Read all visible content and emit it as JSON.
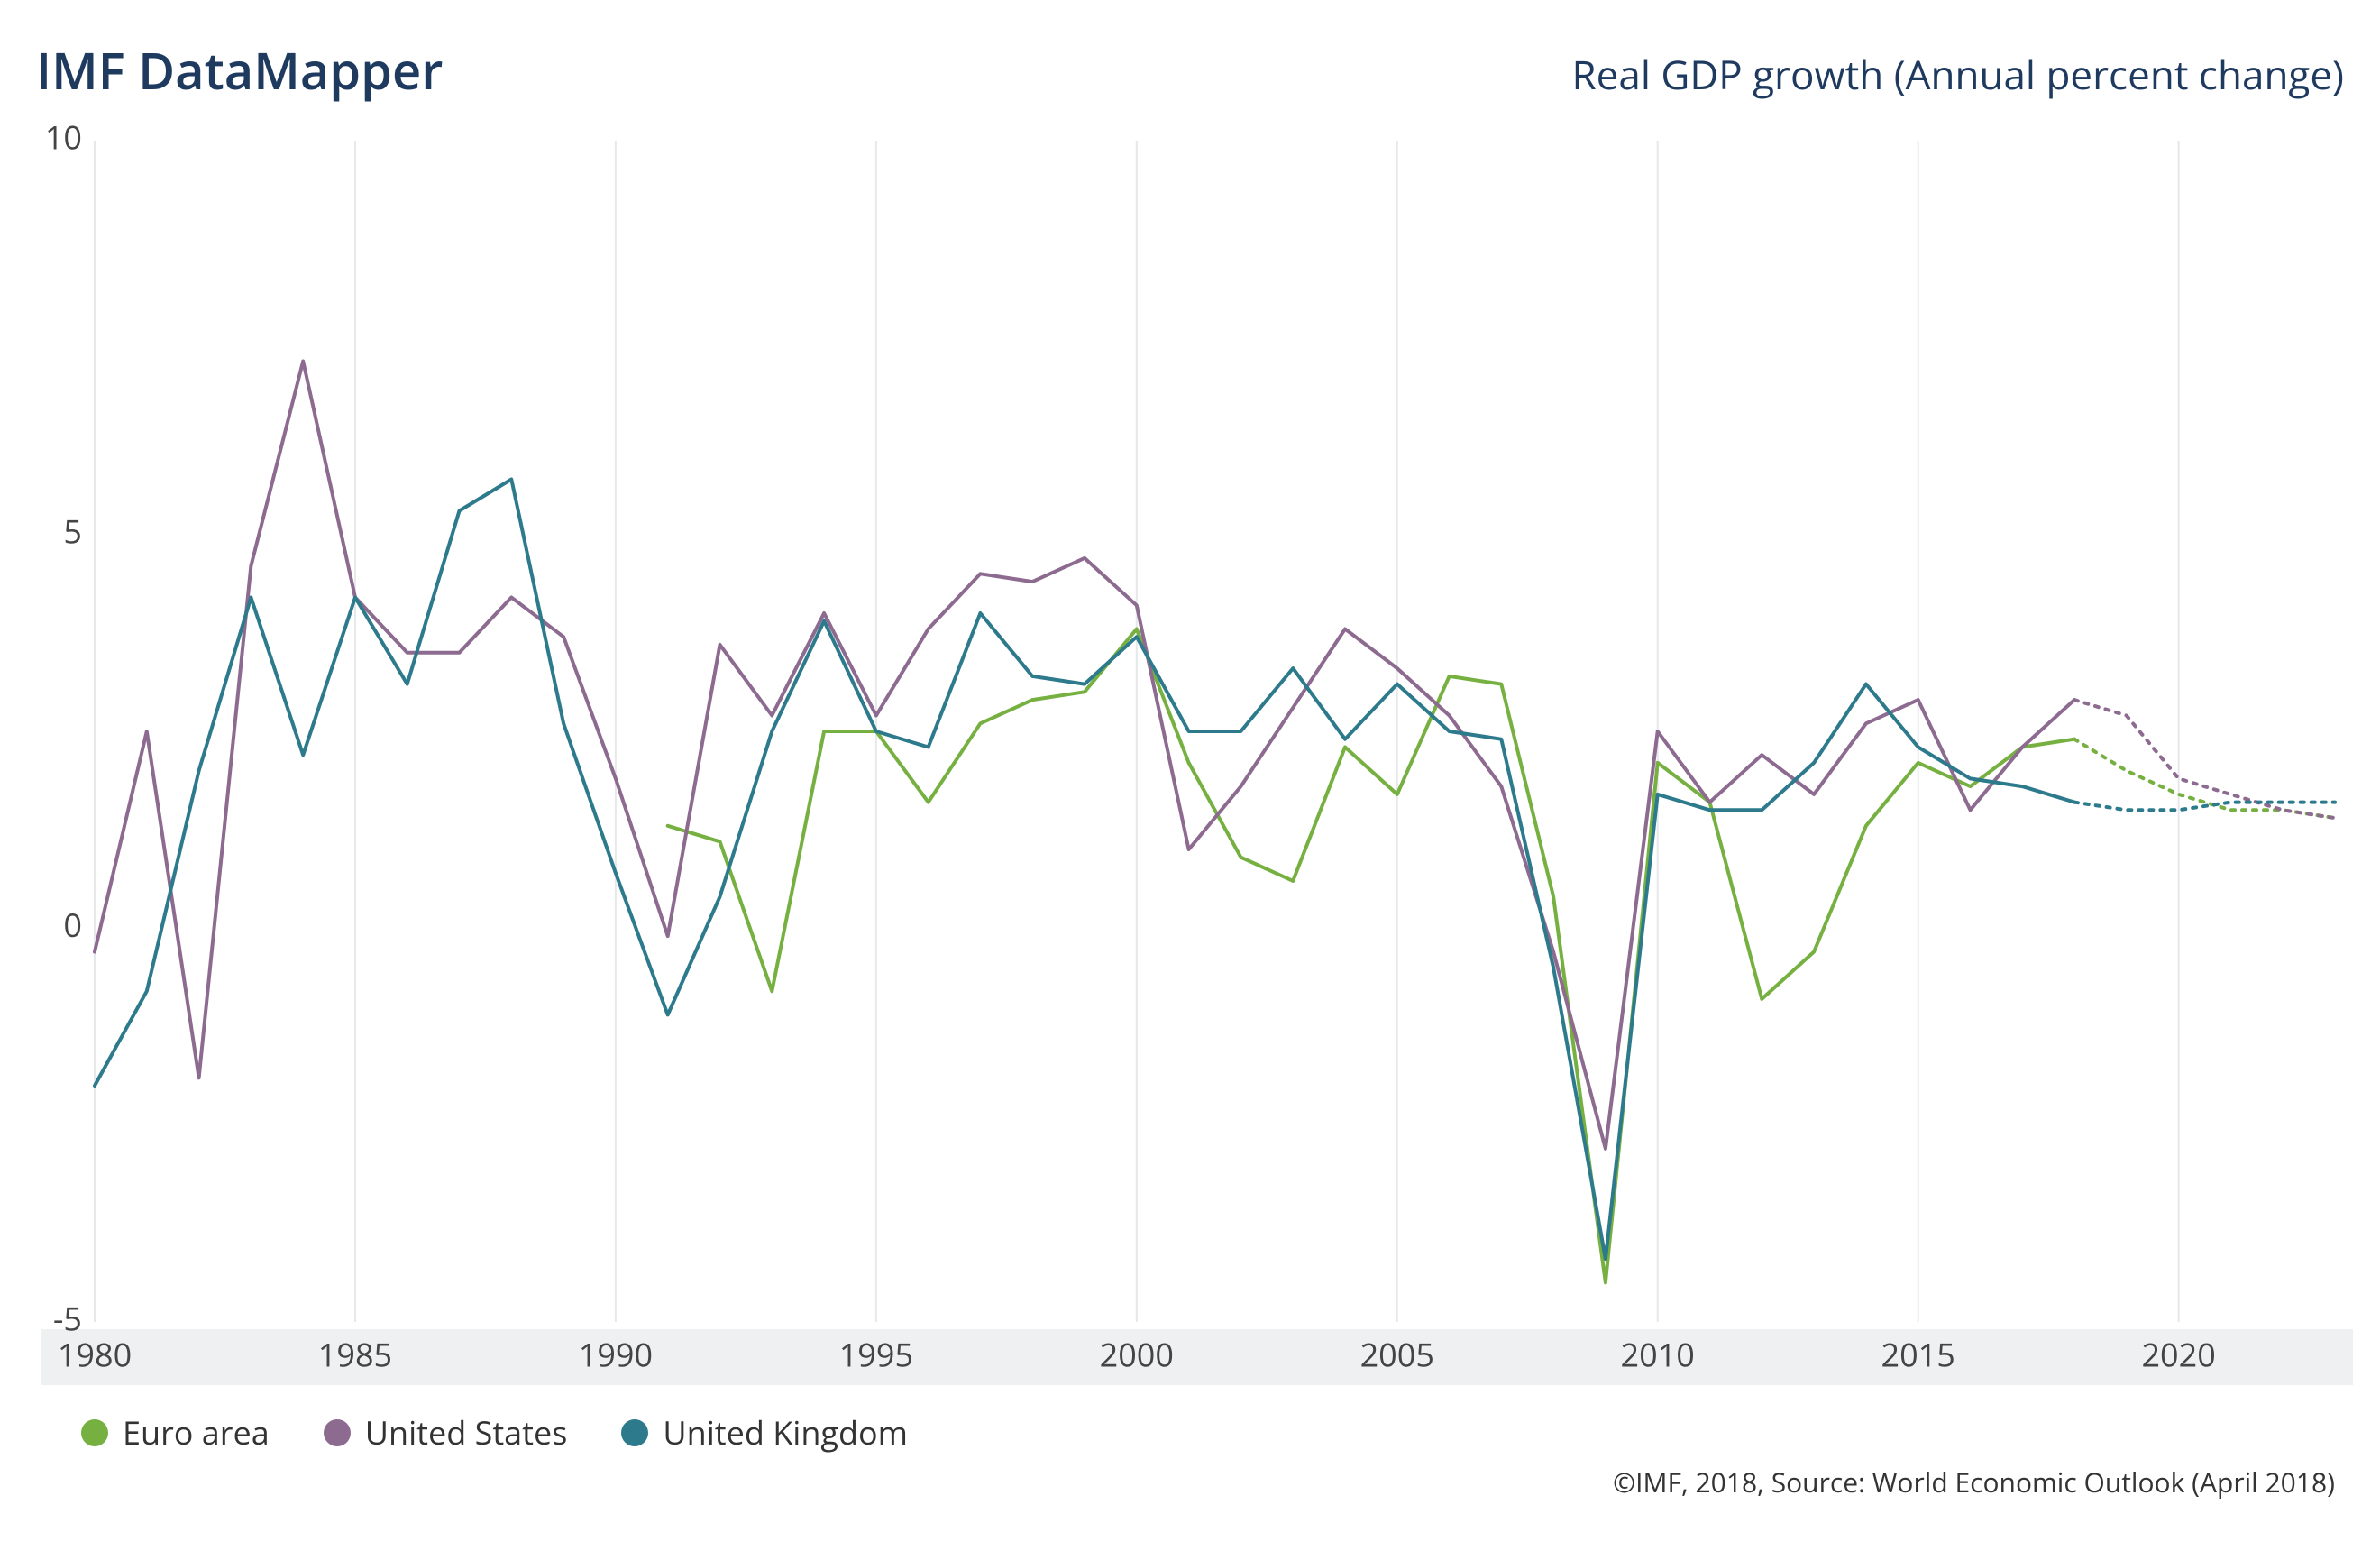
{
  "header": {
    "left_title": "IMF DataMapper",
    "right_title": "Real GDP growth (Annual percent change)"
  },
  "footer": {
    "text": "©IMF, 2018, Source: World Economic Outlook (April 2018)"
  },
  "chart": {
    "type": "line",
    "background_color": "#ffffff",
    "grid_color": "#e6e8eb",
    "x_axis_band_color": "#eef0f2",
    "line_width": 4,
    "forecast_dash": "4 8",
    "x": {
      "min": 1980,
      "max": 2023,
      "ticks": [
        1980,
        1985,
        1990,
        1995,
        2000,
        2005,
        2010,
        2015,
        2020
      ],
      "tick_fontsize": 36,
      "tick_color": "#444444"
    },
    "y": {
      "min": -5,
      "max": 10,
      "ticks": [
        -5,
        0,
        5,
        10
      ],
      "tick_fontsize": 36,
      "tick_color": "#444444"
    },
    "forecast_start_year": 2018,
    "series": [
      {
        "name": "Euro area",
        "color": "#76b041",
        "years": [
          1991,
          1992,
          1993,
          1994,
          1995,
          1996,
          1997,
          1998,
          1999,
          2000,
          2001,
          2002,
          2003,
          2004,
          2005,
          2006,
          2007,
          2008,
          2009,
          2010,
          2011,
          2012,
          2013,
          2014,
          2015,
          2016,
          2017,
          2018,
          2019,
          2020,
          2021,
          2022,
          2023
        ],
        "values": [
          1.3,
          1.1,
          -0.8,
          2.5,
          2.5,
          1.6,
          2.6,
          2.9,
          3.0,
          3.8,
          2.1,
          0.9,
          0.6,
          2.3,
          1.7,
          3.2,
          3.1,
          0.4,
          -4.5,
          2.1,
          1.6,
          -0.9,
          -0.3,
          1.3,
          2.1,
          1.8,
          2.3,
          2.4,
          2.0,
          1.7,
          1.5,
          1.5,
          1.4
        ]
      },
      {
        "name": "United States",
        "color": "#8d6a8f",
        "years": [
          1980,
          1981,
          1982,
          1983,
          1984,
          1985,
          1986,
          1987,
          1988,
          1989,
          1990,
          1991,
          1992,
          1993,
          1994,
          1995,
          1996,
          1997,
          1998,
          1999,
          2000,
          2001,
          2002,
          2003,
          2004,
          2005,
          2006,
          2007,
          2008,
          2009,
          2010,
          2011,
          2012,
          2013,
          2014,
          2015,
          2016,
          2017,
          2018,
          2019,
          2020,
          2021,
          2022,
          2023
        ],
        "values": [
          -0.3,
          2.5,
          -1.9,
          4.6,
          7.2,
          4.2,
          3.5,
          3.5,
          4.2,
          3.7,
          1.9,
          -0.1,
          3.6,
          2.7,
          4.0,
          2.7,
          3.8,
          4.5,
          4.4,
          4.7,
          4.1,
          1.0,
          1.8,
          2.8,
          3.8,
          3.3,
          2.7,
          1.8,
          -0.3,
          -2.8,
          2.5,
          1.6,
          2.2,
          1.7,
          2.6,
          2.9,
          1.5,
          2.3,
          2.9,
          2.7,
          1.9,
          1.7,
          1.5,
          1.4
        ]
      },
      {
        "name": "United Kingdom",
        "color": "#2c7a8c",
        "years": [
          1980,
          1981,
          1982,
          1983,
          1984,
          1985,
          1986,
          1987,
          1988,
          1989,
          1990,
          1991,
          1992,
          1993,
          1994,
          1995,
          1996,
          1997,
          1998,
          1999,
          2000,
          2001,
          2002,
          2003,
          2004,
          2005,
          2006,
          2007,
          2008,
          2009,
          2010,
          2011,
          2012,
          2013,
          2014,
          2015,
          2016,
          2017,
          2018,
          2019,
          2020,
          2021,
          2022,
          2023
        ],
        "values": [
          -2.0,
          -0.8,
          2.0,
          4.2,
          2.2,
          4.2,
          3.1,
          5.3,
          5.7,
          2.6,
          0.7,
          -1.1,
          0.4,
          2.5,
          3.9,
          2.5,
          2.3,
          4.0,
          3.2,
          3.1,
          3.7,
          2.5,
          2.5,
          3.3,
          2.4,
          3.1,
          2.5,
          2.4,
          -0.5,
          -4.2,
          1.7,
          1.5,
          1.5,
          2.1,
          3.1,
          2.3,
          1.9,
          1.8,
          1.6,
          1.5,
          1.5,
          1.6,
          1.6,
          1.6
        ]
      }
    ],
    "legend": {
      "dot_size": 30,
      "fontsize": 36,
      "text_color": "#333333"
    }
  }
}
